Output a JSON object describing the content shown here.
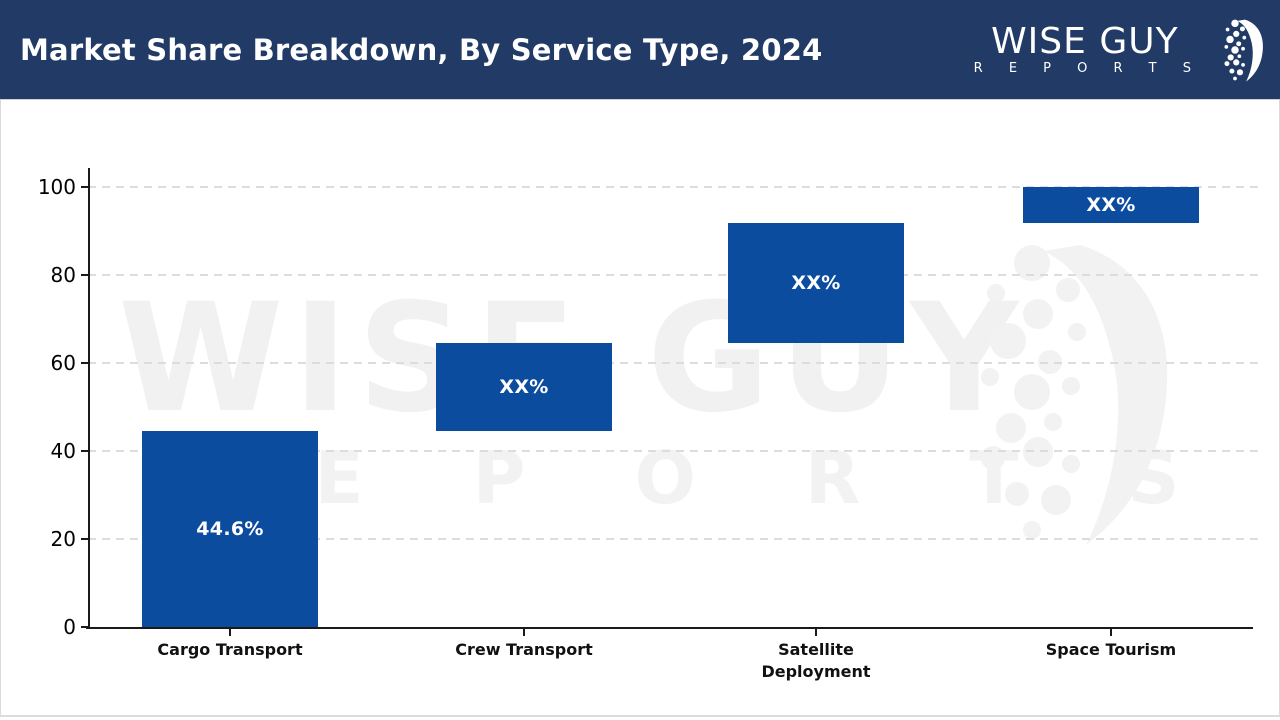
{
  "header": {
    "title": "Market Share Breakdown, By Service Type, 2024",
    "background_color": "#213a66",
    "logo": {
      "line1": "WISE GUY",
      "line2": "R E P O R T S",
      "icon": "dotted-face-profile-icon",
      "color": "#ffffff"
    }
  },
  "watermark": {
    "line1": "WISE GUY",
    "line2": "R E P O R T S",
    "icon": "dotted-face-profile-icon",
    "color": "#f1f1f1"
  },
  "chart_data": {
    "type": "bar",
    "subtype": "floating-waterfall",
    "title": "Market Share Breakdown, By Service Type, 2024",
    "categories": [
      "Cargo Transport",
      "Crew Transport",
      "Satellite Deployment",
      "Space Tourism"
    ],
    "category_display_lines": [
      [
        "Cargo Transport"
      ],
      [
        "Crew Transport"
      ],
      [
        "Satellite",
        "Deployment"
      ],
      [
        "Space Tourism"
      ]
    ],
    "series": [
      {
        "name": "Market Share %",
        "segments": [
          {
            "category": "Cargo Transport",
            "start": 0,
            "end": 44.6,
            "label": "44.6%"
          },
          {
            "category": "Crew Transport",
            "start": 44.6,
            "end": 64.6,
            "label": "XX%"
          },
          {
            "category": "Satellite Deployment",
            "start": 64.6,
            "end": 91.8,
            "label": "XX%"
          },
          {
            "category": "Space Tourism",
            "start": 91.8,
            "end": 100,
            "label": "XX%"
          }
        ]
      }
    ],
    "xlabel": "",
    "ylabel": "",
    "ylim": [
      0,
      104
    ],
    "yticks": [
      0,
      20,
      40,
      60,
      80,
      100
    ],
    "grid": "horizontal dashed, light gray",
    "legend": "none",
    "bar_color": "#0c4c9f",
    "bar_label_color": "#ffffff",
    "axis_color": "#1a1a1a"
  }
}
